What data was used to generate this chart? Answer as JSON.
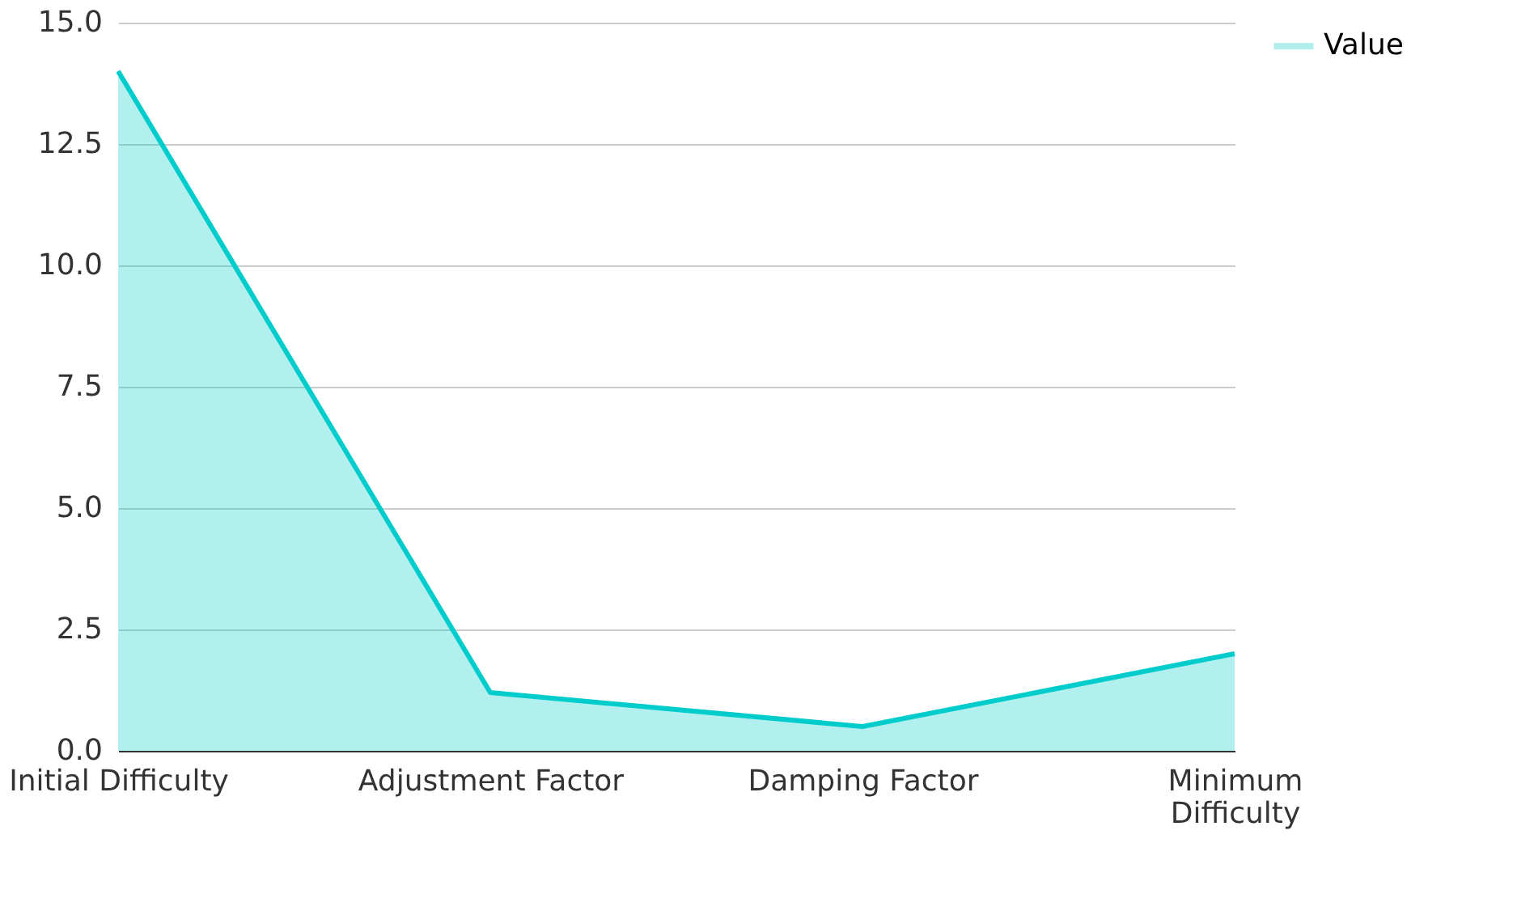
{
  "chart_data": {
    "type": "area",
    "categories": [
      "Initial Difficulty",
      "Adjustment Factor",
      "Damping Factor",
      "Minimum Difficulty"
    ],
    "series": [
      {
        "name": "Value",
        "color": "#00cccc",
        "values": [
          14.0,
          1.2,
          0.5,
          2.0
        ]
      }
    ],
    "ylim": [
      0,
      15
    ],
    "yticks": [
      {
        "value": 0,
        "label": "0.0"
      },
      {
        "value": 2.5,
        "label": "2.5"
      },
      {
        "value": 5,
        "label": "5.0"
      },
      {
        "value": 7.5,
        "label": "7.5"
      },
      {
        "value": 10,
        "label": "10.0"
      },
      {
        "value": 12.5,
        "label": "12.5"
      },
      {
        "value": 15,
        "label": "15.0"
      }
    ],
    "grid": "y",
    "legend": "top right"
  }
}
